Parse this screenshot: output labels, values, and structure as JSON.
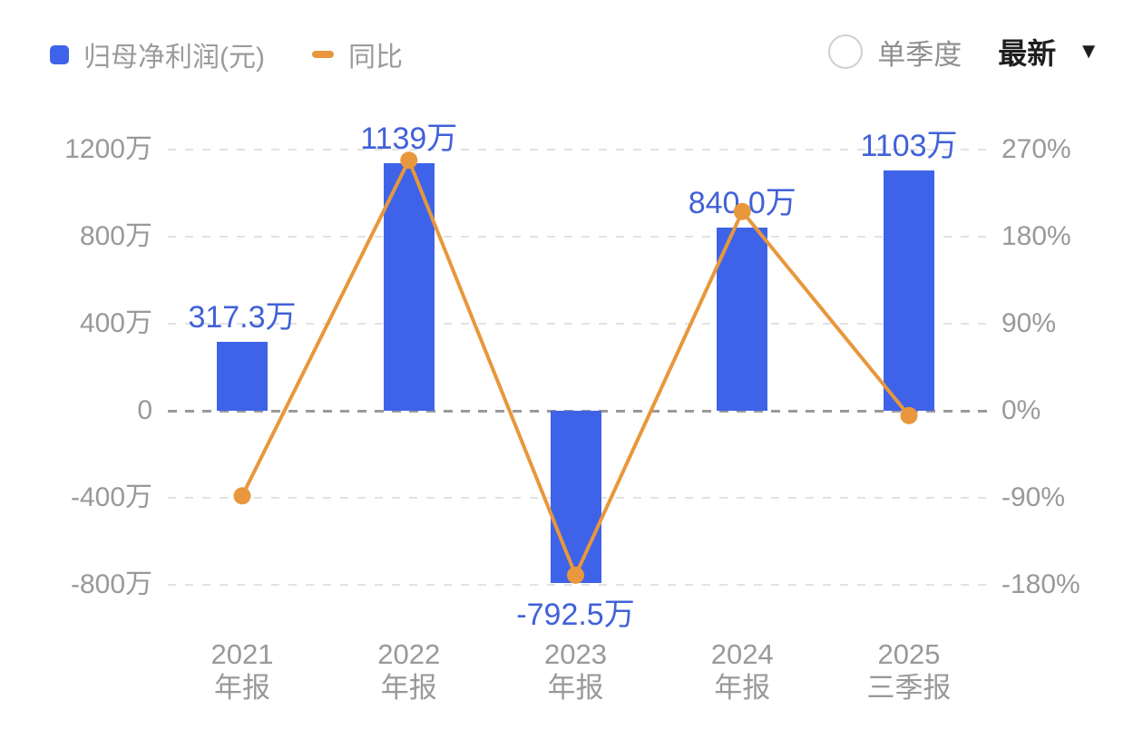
{
  "header": {
    "legend": [
      {
        "label": "归母净利润(元)",
        "marker": "bar-swatch",
        "color": "#3E63E8"
      },
      {
        "label": "同比",
        "marker": "line-swatch",
        "color": "#E8973C"
      }
    ],
    "controls": {
      "radio_label": "单季度",
      "radio_checked": false,
      "dropdown_value": "最新",
      "dropdown_icon": "caret-down"
    }
  },
  "chart_data": {
    "type": "bar+line",
    "categories": [
      {
        "line1": "2021",
        "line2": "年报"
      },
      {
        "line1": "2022",
        "line2": "年报"
      },
      {
        "line1": "2023",
        "line2": "年报"
      },
      {
        "line1": "2024",
        "line2": "年报"
      },
      {
        "line1": "2025",
        "line2": "三季报"
      }
    ],
    "series": [
      {
        "name": "归母净利润(元)",
        "type": "bar",
        "axis": "left",
        "unit": "万",
        "values": [
          317.3,
          1139,
          -792.5,
          840.0,
          1103
        ],
        "labels": [
          "317.3万",
          "1139万",
          "-792.5万",
          "840.0万",
          "1103万"
        ],
        "color": "#3E63E8"
      },
      {
        "name": "同比",
        "type": "line",
        "axis": "right",
        "unit": "%",
        "values": [
          -88,
          259,
          -170,
          206,
          -5
        ],
        "color": "#E8973C"
      }
    ],
    "left_axis": {
      "units_per_grid": 400,
      "ticks": [
        {
          "label": "1200万",
          "value": 1200
        },
        {
          "label": "800万",
          "value": 800
        },
        {
          "label": "400万",
          "value": 400
        },
        {
          "label": "0",
          "value": 0
        },
        {
          "label": "-400万",
          "value": -400
        },
        {
          "label": "-800万",
          "value": -800
        }
      ]
    },
    "right_axis": {
      "units_per_grid": 90,
      "ticks": [
        {
          "label": "270%",
          "value": 270
        },
        {
          "label": "180%",
          "value": 180
        },
        {
          "label": "90%",
          "value": 90
        },
        {
          "label": "0%",
          "value": 0
        },
        {
          "label": "-90%",
          "value": -90
        },
        {
          "label": "-180%",
          "value": -180
        }
      ]
    },
    "grid": "dashed horizontal, zero line emphasized",
    "legend_position": "top-left",
    "colors": {
      "bar": "#3E63E8",
      "line": "#E8973C",
      "value_label_text": "#4161D8",
      "axis_text": "#999999",
      "grid_light": "#E2E2E2",
      "grid_zero": "#9A9A9A"
    }
  }
}
